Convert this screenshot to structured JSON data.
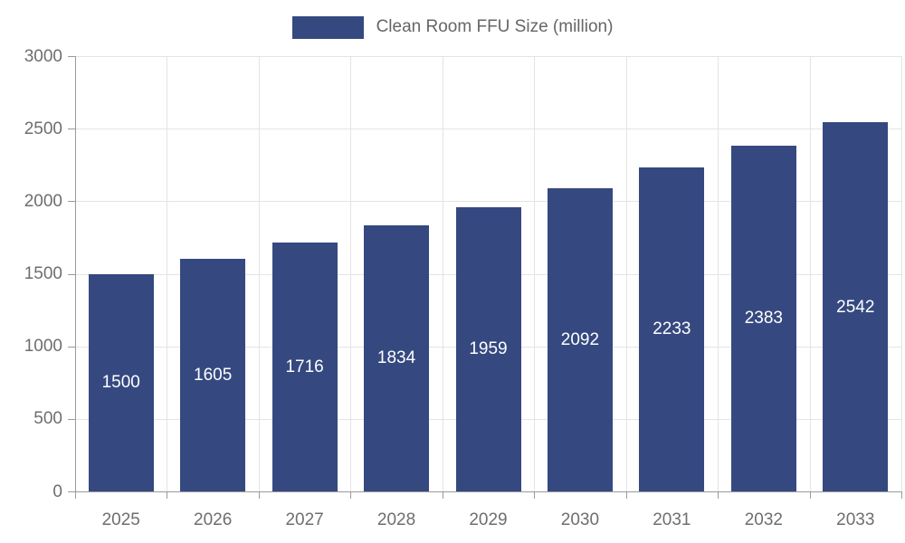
{
  "legend": {
    "label": "Clean Room FFU Size (million)",
    "swatch_color": "#354980"
  },
  "chart_data": {
    "type": "bar",
    "title": "Clean Room FFU Size (million)",
    "categories": [
      "2025",
      "2026",
      "2027",
      "2028",
      "2029",
      "2030",
      "2031",
      "2032",
      "2033"
    ],
    "values": [
      1500,
      1605,
      1716,
      1834,
      1959,
      2092,
      2233,
      2383,
      2542
    ],
    "series": [
      {
        "name": "Clean Room FFU Size (million)",
        "values": [
          1500,
          1605,
          1716,
          1834,
          1959,
          2092,
          2233,
          2383,
          2542
        ]
      }
    ],
    "xlabel": "",
    "ylabel": "",
    "ylim": [
      0,
      3000
    ],
    "yticks": [
      0,
      500,
      1000,
      1500,
      2000,
      2500,
      3000
    ],
    "grid": true,
    "legend_position": "top",
    "bar_color": "#354980",
    "value_label_color": "#ffffff",
    "axis_color": "#9a9a9a",
    "gridline_color": "#e4e4e4",
    "tick_label_color": "#6e6e6e"
  }
}
